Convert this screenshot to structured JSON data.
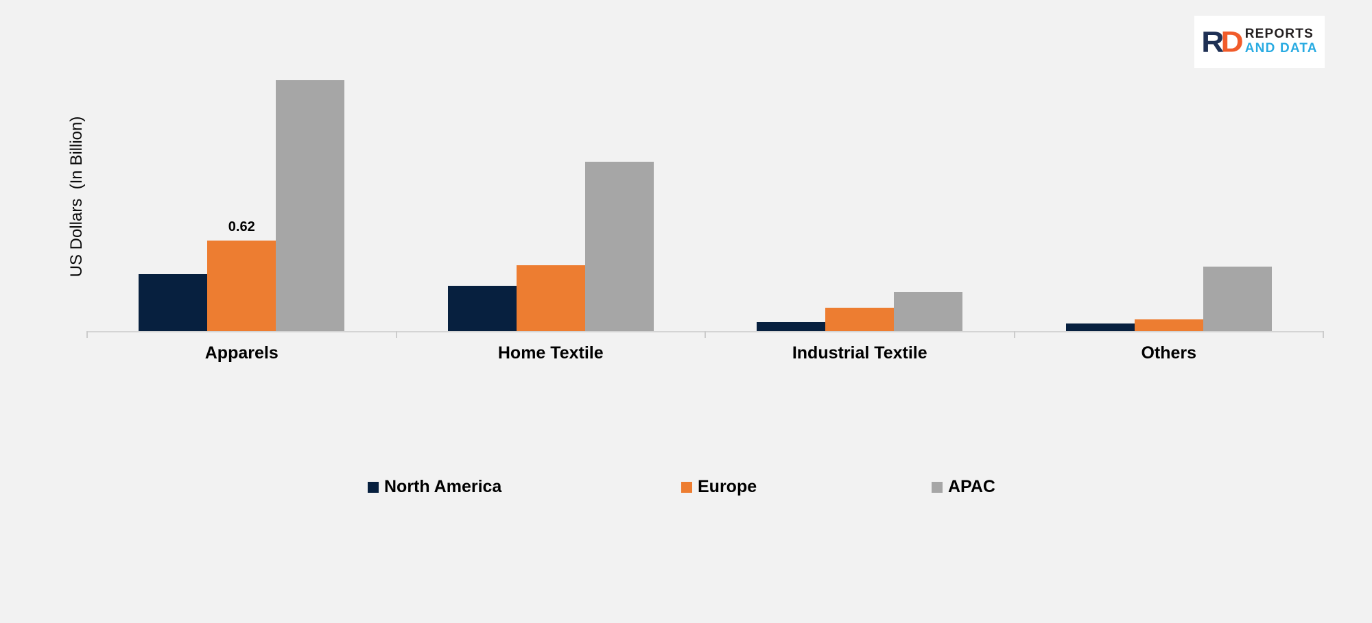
{
  "logo": {
    "monogram_r": "R",
    "monogram_d": "D",
    "line1": "REPORTS",
    "line2": "AND DATA",
    "colors": {
      "navy": "#1e3054",
      "orange": "#f15b2a",
      "dark_text": "#231f20",
      "cyan": "#29abe2"
    }
  },
  "chart_data": {
    "type": "bar",
    "title": "",
    "xlabel": "",
    "ylabel": "US Dollars  (In Billion)",
    "categories": [
      "Apparels",
      "Home Textile",
      "Industrial Textile",
      "Others"
    ],
    "series": [
      {
        "name": "North America",
        "color": "#07203f",
        "values": [
          0.39,
          0.31,
          0.06,
          0.05
        ]
      },
      {
        "name": "Europe",
        "color": "#ed7d31",
        "values": [
          0.62,
          0.45,
          0.16,
          0.08
        ]
      },
      {
        "name": "APAC",
        "color": "#a6a6a6",
        "values": [
          1.72,
          1.16,
          0.27,
          0.44
        ]
      }
    ],
    "data_labels": [
      {
        "series": 1,
        "category": 0,
        "text": "0.62"
      }
    ],
    "axis": {
      "ylim": [
        0,
        1.85
      ],
      "grid": false,
      "y_ticks_visible": false,
      "baseline_color": "#d4d4d4",
      "legend_position": "bottom"
    },
    "background": "#f2f2f2"
  }
}
